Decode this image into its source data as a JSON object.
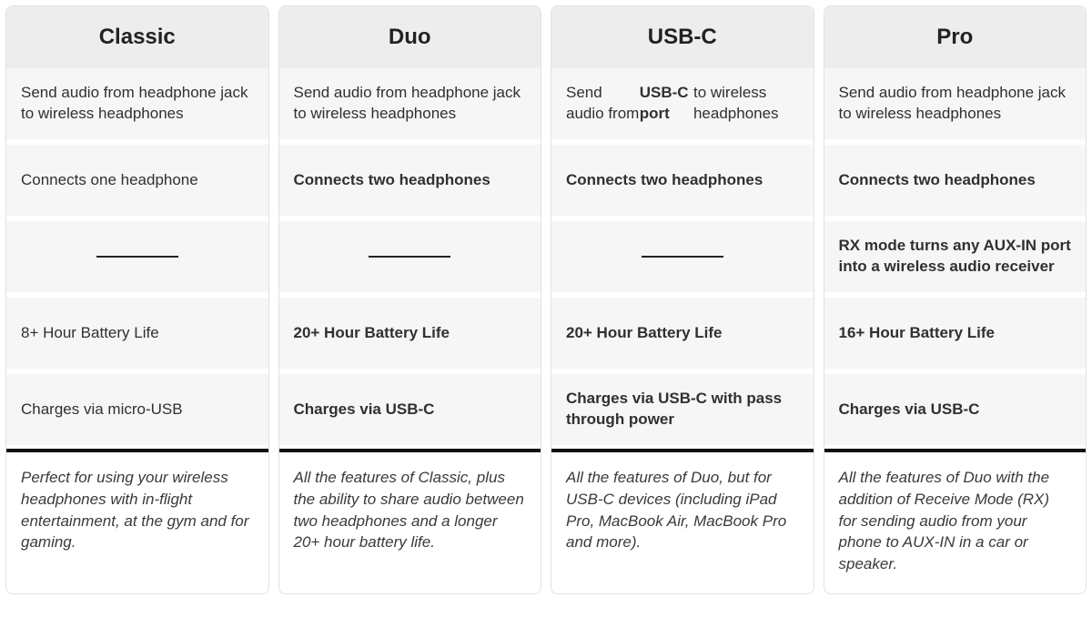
{
  "columns": [
    {
      "title": "Classic",
      "rows": [
        {
          "html": "Send audio from headphone jack to wireless headphones",
          "bold": false,
          "dash": false
        },
        {
          "html": "Connects one headphone",
          "bold": false,
          "dash": false
        },
        {
          "html": "",
          "bold": false,
          "dash": true
        },
        {
          "html": "8+ Hour Battery Life",
          "bold": false,
          "dash": false
        },
        {
          "html": "Charges via micro-USB",
          "bold": false,
          "dash": false
        }
      ],
      "summary": "Perfect for using your wireless headphones with in-flight entertainment, at the gym and for gaming."
    },
    {
      "title": "Duo",
      "rows": [
        {
          "html": "Send audio from headphone jack to wireless headphones",
          "bold": false,
          "dash": false
        },
        {
          "html": "Connects two headphones",
          "bold": true,
          "dash": false
        },
        {
          "html": "",
          "bold": false,
          "dash": true
        },
        {
          "html": "20+ Hour Battery Life",
          "bold": true,
          "dash": false
        },
        {
          "html": "Charges via USB-C",
          "bold": true,
          "dash": false
        }
      ],
      "summary": "All the features of Classic, plus the ability to share audio between two headphones and a longer 20+ hour battery life."
    },
    {
      "title": "USB-C",
      "rows": [
        {
          "html": "Send audio from <b>USB-C port</b> to wireless headphones",
          "bold": false,
          "dash": false
        },
        {
          "html": "Connects two headphones",
          "bold": true,
          "dash": false
        },
        {
          "html": "",
          "bold": false,
          "dash": true
        },
        {
          "html": "20+ Hour Battery Life",
          "bold": true,
          "dash": false
        },
        {
          "html": "Charges via USB-C with pass through power",
          "bold": true,
          "dash": false
        }
      ],
      "summary": "All the features of Duo, but for USB-C devices (including iPad Pro, MacBook Air, MacBook Pro and more)."
    },
    {
      "title": "Pro",
      "rows": [
        {
          "html": "Send audio from headphone jack to wireless headphones",
          "bold": false,
          "dash": false
        },
        {
          "html": "Connects two headphones",
          "bold": true,
          "dash": false
        },
        {
          "html": "RX mode turns any AUX-IN port into a wireless audio receiver",
          "bold": true,
          "dash": false
        },
        {
          "html": "16+ Hour Battery Life",
          "bold": true,
          "dash": false
        },
        {
          "html": "Charges via USB-C",
          "bold": true,
          "dash": false
        }
      ],
      "summary": "All the features of Duo with the addition of Receive Mode (RX) for sending audio from your phone to AUX-IN in a car or speaker."
    }
  ],
  "styling": {
    "column_count": 4,
    "row_count": 5,
    "header_bg": "#ededed",
    "cell_bg": "#f6f6f6",
    "border_color": "#e2e2e2",
    "divider_color": "#111111",
    "text_color": "#303030",
    "header_fontsize": 24,
    "cell_fontsize": 17,
    "summary_italic": true
  }
}
